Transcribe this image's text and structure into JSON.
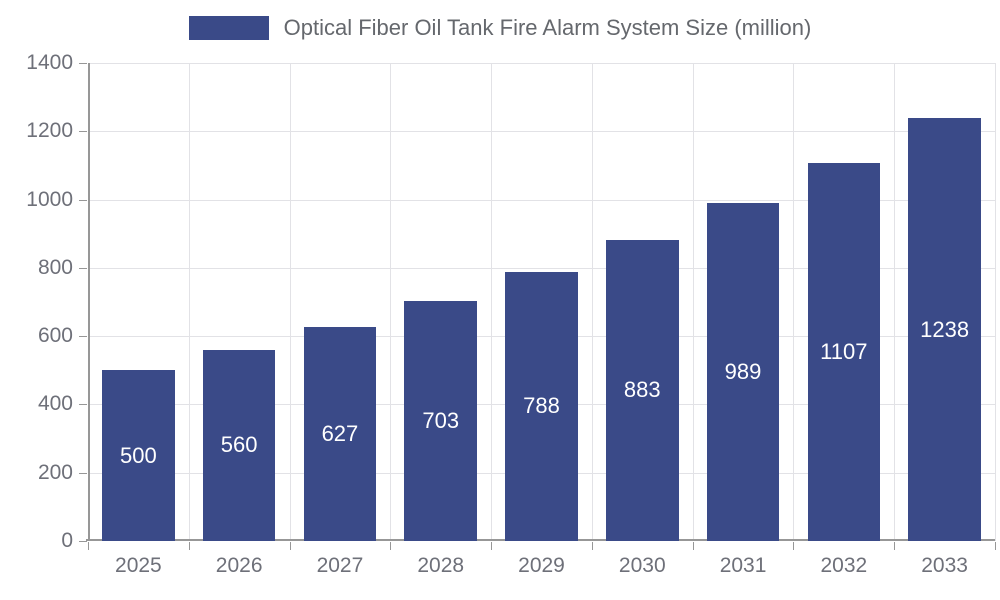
{
  "chart_data": {
    "type": "bar",
    "title": "Optical Fiber Oil Tank Fire Alarm System Size (million)",
    "legend": [
      "Optical Fiber Oil Tank Fire Alarm System Size (million)"
    ],
    "legend_position": "top",
    "categories": [
      "2025",
      "2026",
      "2027",
      "2028",
      "2029",
      "2030",
      "2031",
      "2032",
      "2033"
    ],
    "series": [
      {
        "name": "Optical Fiber Oil Tank Fire Alarm System Size (million)",
        "values": [
          500,
          560,
          627,
          703,
          788,
          883,
          989,
          1107,
          1238
        ]
      }
    ],
    "data_labels": [
      "500",
      "560",
      "627",
      "703",
      "788",
      "883",
      "989",
      "1107",
      "1238"
    ],
    "xlabel": "",
    "ylabel": "",
    "ylim": [
      0,
      1400
    ],
    "yticks": [
      0,
      200,
      400,
      600,
      800,
      1000,
      1200,
      1400
    ],
    "grid": "on",
    "colors": {
      "bar": "#3a4a88",
      "bar_label": "#ffffff",
      "axis": "#979797",
      "gridline": "#e2e2e6",
      "tick_label": "#6e7079",
      "legend_text": "#65686d",
      "background": "#ffffff"
    }
  }
}
